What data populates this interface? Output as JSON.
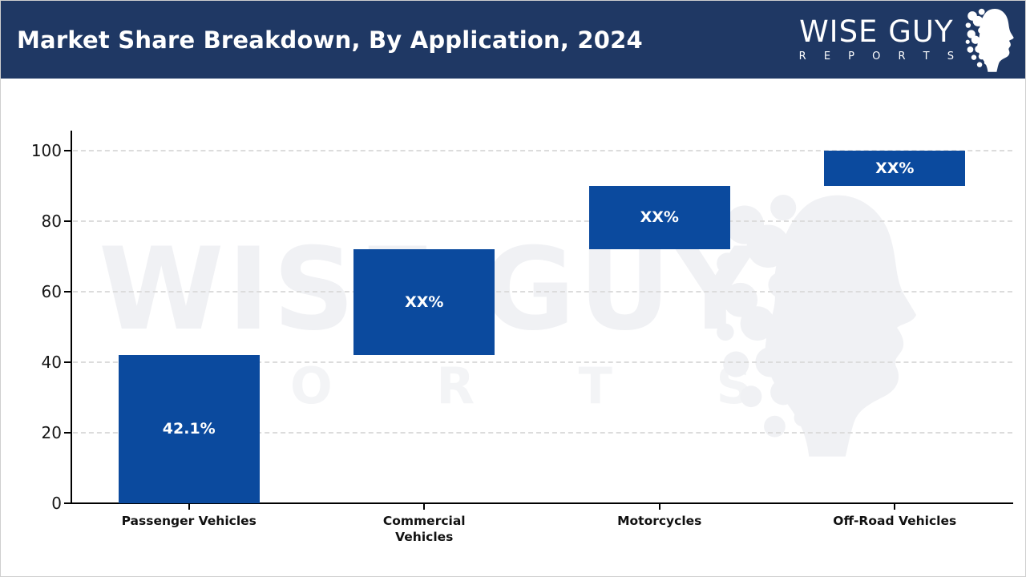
{
  "header": {
    "title": "Market Share Breakdown, By Application, 2024",
    "bg_color": "#1f3864",
    "logo_line1": "WISE GUY",
    "logo_line2": "R E P O R T S"
  },
  "watermark": {
    "line1": "WISE GUY",
    "line2": "P O R T S"
  },
  "chart_data": {
    "type": "bar",
    "variant": "waterfall",
    "title": "Market Share Breakdown, By Application, 2024",
    "categories": [
      "Passenger Vehicles",
      "Commercial\nVehicles",
      "Motorcycles",
      "Off-Road Vehicles"
    ],
    "segments": [
      {
        "category": "Passenger Vehicles",
        "start": 0,
        "end": 42.1,
        "label": "42.1%"
      },
      {
        "category": "Commercial Vehicles",
        "start": 42.1,
        "end": 72.1,
        "label": "XX%"
      },
      {
        "category": "Motorcycles",
        "start": 72.1,
        "end": 90.1,
        "label": "XX%"
      },
      {
        "category": "Off-Road Vehicles",
        "start": 90.1,
        "end": 100,
        "label": "XX%"
      }
    ],
    "ylim": [
      0,
      100
    ],
    "yticks": [
      0,
      20,
      40,
      60,
      80,
      100
    ],
    "xlabel": "",
    "ylabel": "",
    "grid": "horizontal-dashed",
    "legend": "none",
    "bar_color": "#0b4a9e",
    "bar_label_color": "#ffffff"
  }
}
